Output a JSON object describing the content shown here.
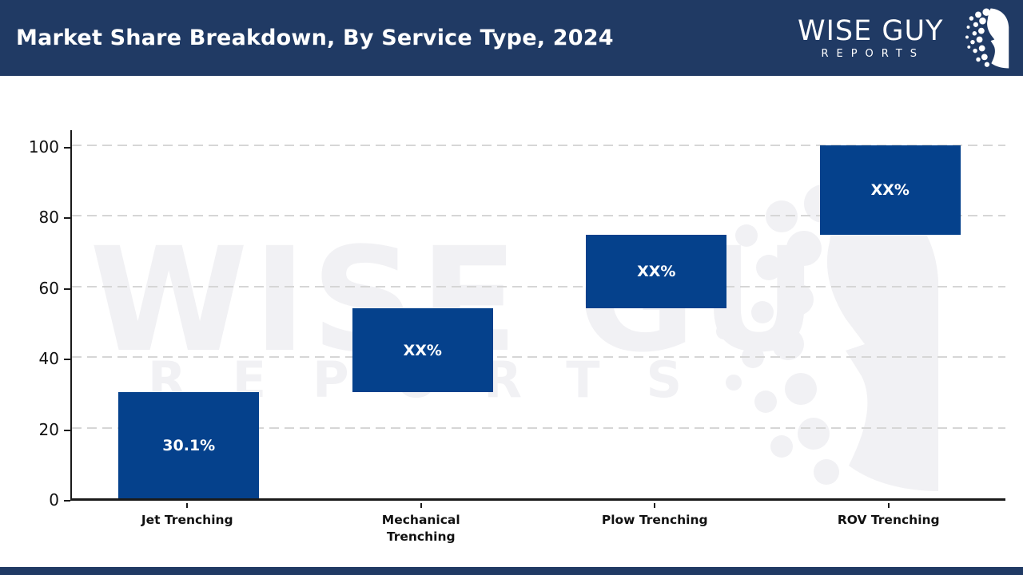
{
  "header": {
    "title": "Market Share Breakdown, By Service Type, 2024",
    "logo_line1": "WISE GUY",
    "logo_line2": "REPORTS"
  },
  "watermark": {
    "line1": "WISE GU",
    "line2": "REPORTS"
  },
  "colors": {
    "header_bg": "#203a64",
    "footer_bg": "#203a64",
    "bar": "#05418c",
    "bar_label": "#ffffff",
    "gridline": "#d6d6d6",
    "axis": "#1a1a1a",
    "watermark": "#f1f1f4"
  },
  "chart_data": {
    "type": "bar",
    "variant": "floating-waterfall",
    "title": "Market Share Breakdown, By Service Type, 2024",
    "categories": [
      "Jet Trenching",
      "Mechanical Trenching",
      "Plow Trenching",
      "ROV Trenching"
    ],
    "series": [
      {
        "name": "Market share (%)",
        "segments": [
          {
            "category": "Jet Trenching",
            "start": 0,
            "end": 30.1,
            "label": "30.1%"
          },
          {
            "category": "Mechanical Trenching",
            "start": 30.1,
            "end": 53.8,
            "label": "XX%"
          },
          {
            "category": "Plow Trenching",
            "start": 53.8,
            "end": 74.7,
            "label": "XX%"
          },
          {
            "category": "ROV Trenching",
            "start": 74.7,
            "end": 100,
            "label": "XX%"
          }
        ]
      }
    ],
    "xlabel": "",
    "ylabel": "",
    "ylim": [
      0,
      105
    ],
    "yticks": [
      0,
      20,
      40,
      60,
      80,
      100
    ],
    "grid": "horizontal-dashed",
    "legend": "none"
  }
}
